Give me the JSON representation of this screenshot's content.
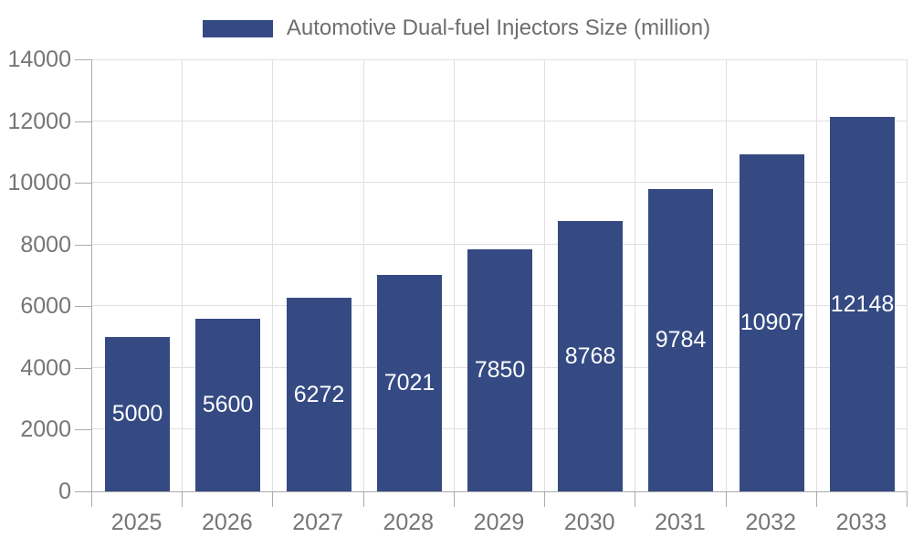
{
  "legend": {
    "label": "Automotive Dual-fuel Injectors Size (million)"
  },
  "chart_data": {
    "type": "bar",
    "title": "Automotive Dual-fuel Injectors Size (million)",
    "categories": [
      "2025",
      "2026",
      "2027",
      "2028",
      "2029",
      "2030",
      "2031",
      "2032",
      "2033"
    ],
    "values": [
      5000,
      5600,
      6272,
      7021,
      7850,
      8768,
      9784,
      10907,
      12148
    ],
    "series": [
      {
        "name": "Automotive Dual-fuel Injectors Size (million)",
        "values": [
          5000,
          5600,
          6272,
          7021,
          7850,
          8768,
          9784,
          10907,
          12148
        ]
      }
    ],
    "xlabel": "",
    "ylabel": "",
    "ylim": [
      0,
      14000
    ],
    "yticks": [
      0,
      2000,
      4000,
      6000,
      8000,
      10000,
      12000,
      14000
    ],
    "grid": true,
    "legend_position": "top-center",
    "bar_labels_inside": true,
    "colors": {
      "bar": "#354a83",
      "bar_label": "#ffffff",
      "axis_text": "#757575",
      "legend_text": "#6e6e6e",
      "grid_line": "#e0e0e0",
      "axis_line": "#ababab",
      "background": "#ffffff"
    }
  }
}
